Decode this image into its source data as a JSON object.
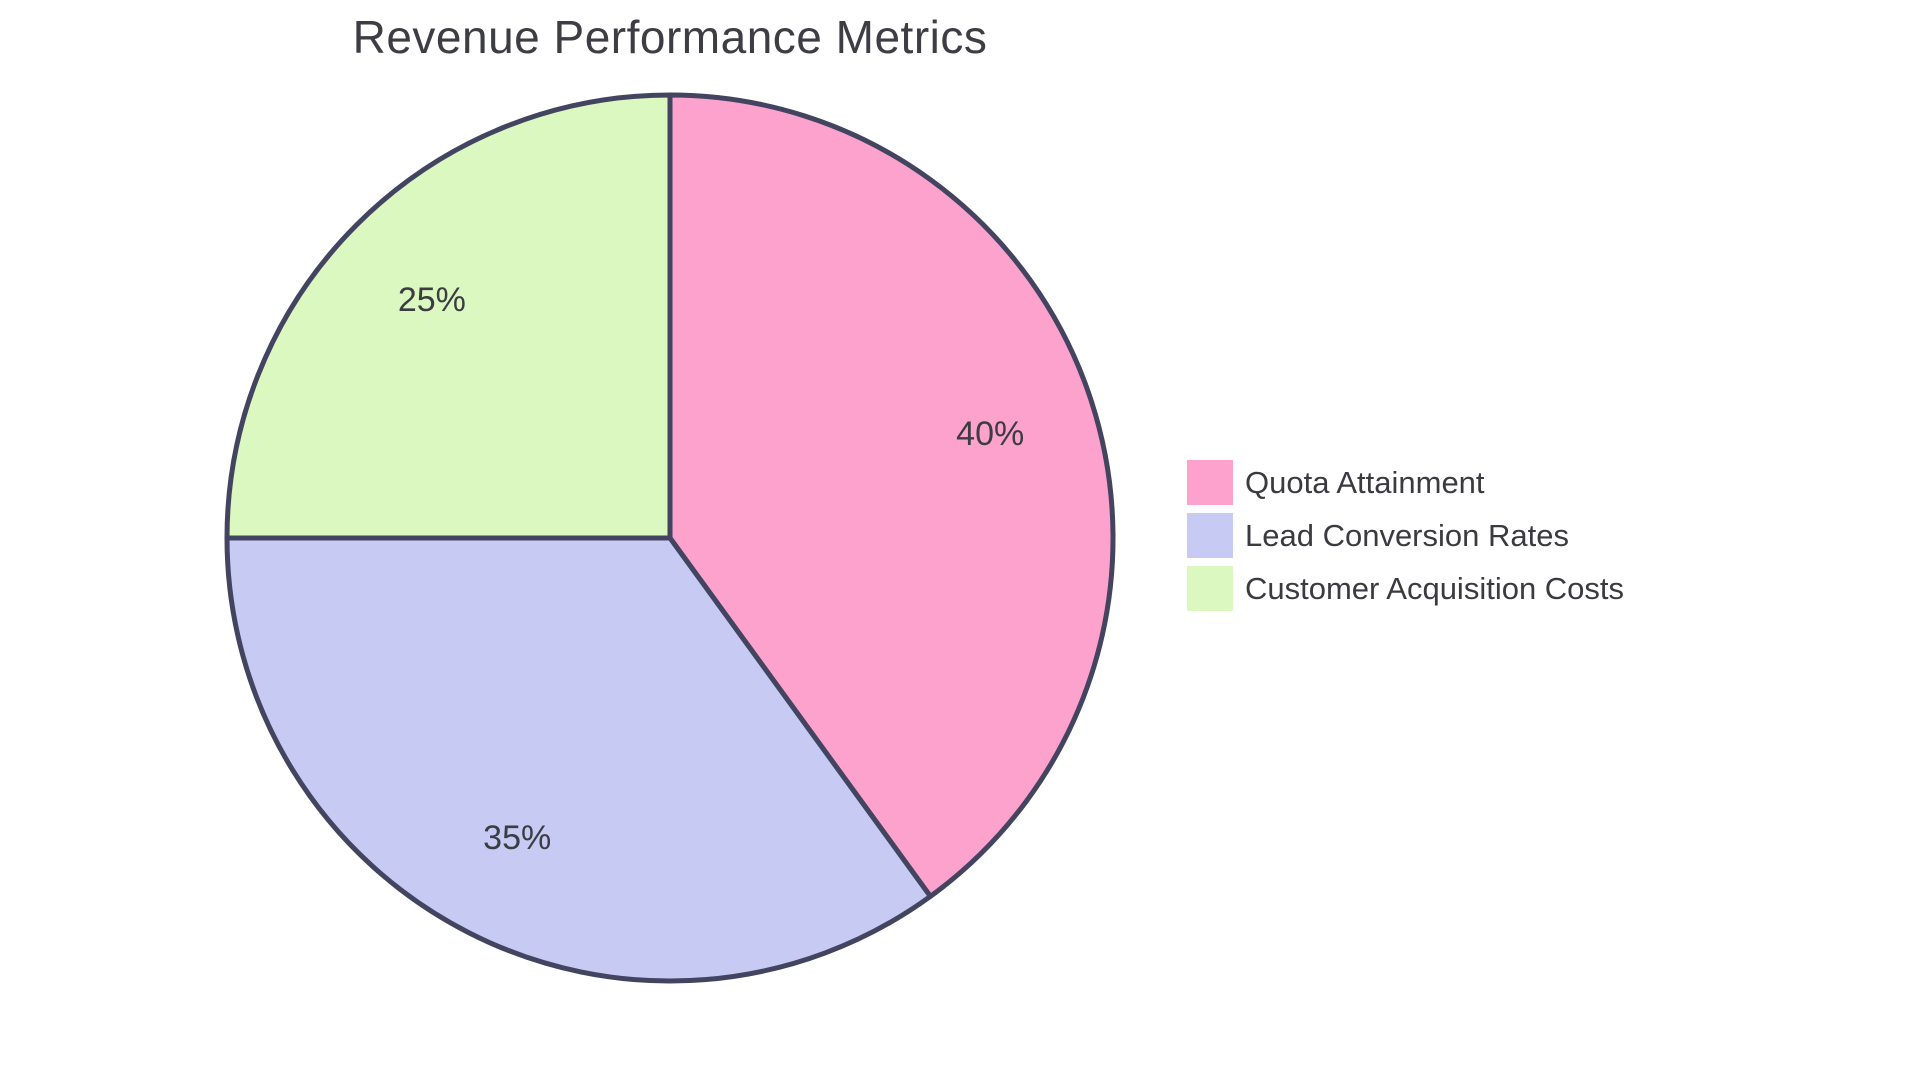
{
  "chart_data": {
    "type": "pie",
    "title": "Revenue Performance Metrics",
    "labels": [
      "Quota Attainment",
      "Lead Conversion Rates",
      "Customer Acquisition Costs"
    ],
    "values": [
      40,
      35,
      25
    ],
    "percent_labels": [
      "40%",
      "35%",
      "25%"
    ],
    "colors": [
      "#FCA2CD",
      "#C7CAF2",
      "#DBF8C0"
    ],
    "edge_color": "#424460",
    "title_color": "#3D3D44",
    "label_color": "#3C3C43",
    "start_angle": "top",
    "direction": "clockwise",
    "legend_position": "right",
    "pct_distance": 0.76
  }
}
